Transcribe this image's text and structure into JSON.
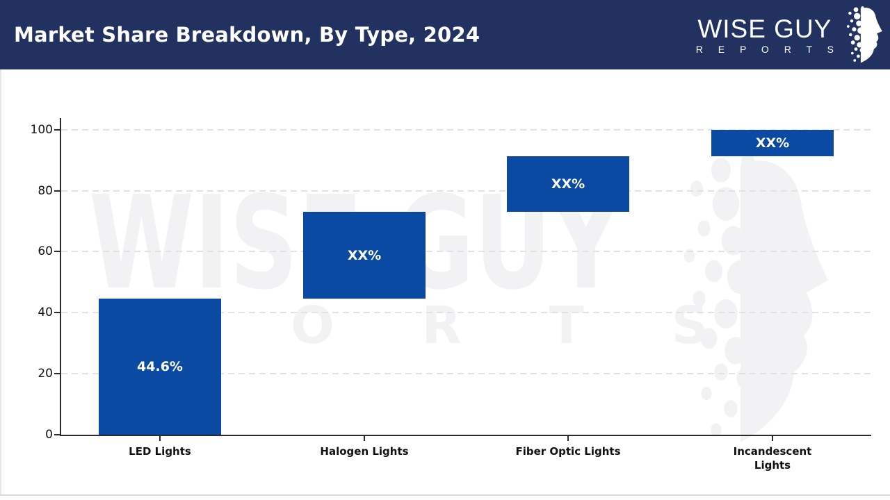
{
  "header": {
    "title": "Market Share Breakdown, By Type, 2024",
    "bg_color": "#213261",
    "logo": {
      "name": "WISE GUY",
      "sub": "R E P O R T S"
    }
  },
  "watermark": {
    "line1": "WISE GUY",
    "line2": "P O R T S"
  },
  "chart_data": {
    "type": "bar",
    "subtype": "waterfall",
    "title": "Market Share Breakdown, By Type, 2024",
    "categories": [
      "LED Lights",
      "Halogen Lights",
      "Fiber Optic Lights",
      "Incandescent Lights"
    ],
    "category_display_lines": [
      [
        "LED Lights"
      ],
      [
        "Halogen Lights"
      ],
      [
        "Fiber Optic Lights"
      ],
      [
        "Incandescent",
        "Lights"
      ]
    ],
    "series": [
      {
        "name": "Market share (%)",
        "segments": [
          {
            "category": "LED Lights",
            "start": 0,
            "end": 44.6,
            "label": "44.6%"
          },
          {
            "category": "Halogen Lights",
            "start": 44.6,
            "end": 73.1,
            "label": "XX%"
          },
          {
            "category": "Fiber Optic Lights",
            "start": 73.1,
            "end": 91.3,
            "label": "XX%"
          },
          {
            "category": "Incandescent Lights",
            "start": 91.3,
            "end": 100,
            "label": "XX%"
          }
        ]
      }
    ],
    "yticks": [
      0,
      20,
      40,
      60,
      80,
      100
    ],
    "ylim": [
      0,
      100
    ],
    "xlabel": "",
    "ylabel": "",
    "grid": "horizontal-dashed",
    "legend": "none",
    "bar_color": "#0b4aa2",
    "bar_label_color": "#ffffff"
  },
  "colors": {
    "header_bg": "#213261",
    "bar": "#0b4aa2",
    "axis": "#2b2b2b",
    "grid": "#e2e2e2",
    "watermark": "#f2f2f4"
  }
}
